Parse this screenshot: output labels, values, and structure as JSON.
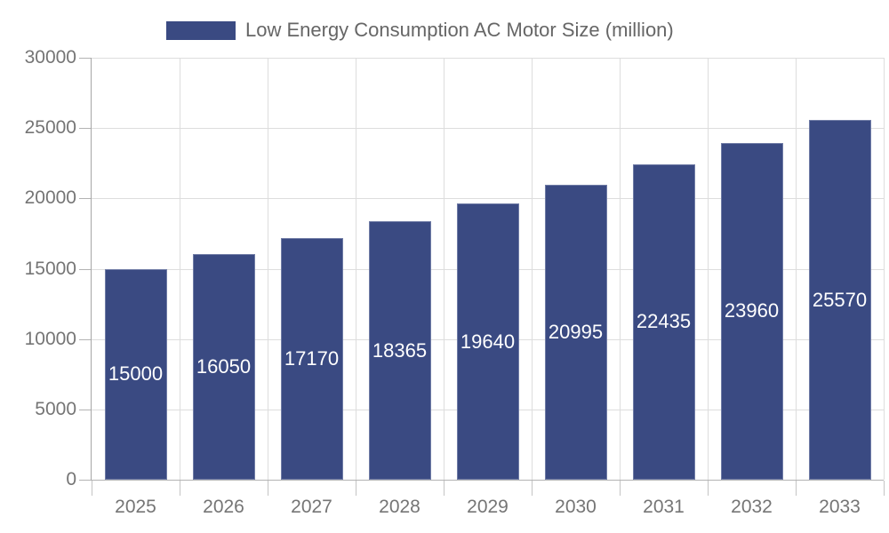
{
  "legend": {
    "label": "Low Energy Consumption AC Motor Size (million)"
  },
  "chart_data": {
    "type": "bar",
    "title": "Low Energy Consumption AC Motor Size (million)",
    "categories": [
      "2025",
      "2026",
      "2027",
      "2028",
      "2029",
      "2030",
      "2031",
      "2032",
      "2033"
    ],
    "values": [
      15000,
      16050,
      17170,
      18365,
      19640,
      20995,
      22435,
      23960,
      25570
    ],
    "series_name": "Low Energy Consumption AC Motor Size (million)",
    "xlabel": "",
    "ylabel": "",
    "ylim": [
      0,
      30000
    ],
    "yticks": [
      0,
      5000,
      10000,
      15000,
      20000,
      25000,
      30000
    ],
    "grid": true,
    "legend_position": "top",
    "bar_labels_shown": true,
    "colors": {
      "bar": "#3a4a82",
      "bar_edge": "#707ca6",
      "bar_label": "#ffffff",
      "tick_label": "#757575",
      "legend_text": "#666666",
      "gridline": "#dddddd",
      "axis_line": "#a6a6a6",
      "background": "#ffffff"
    }
  }
}
